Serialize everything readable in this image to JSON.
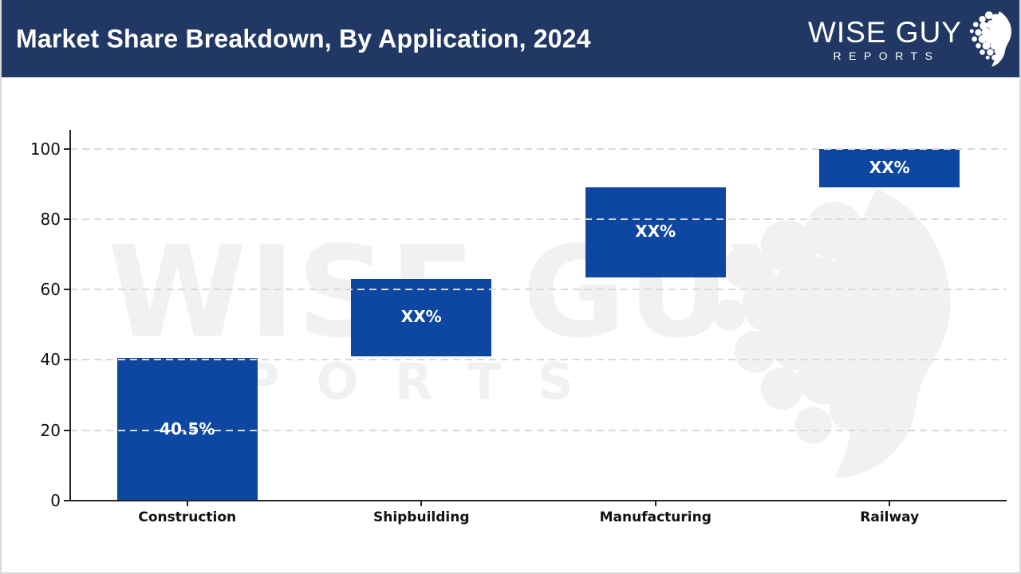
{
  "header": {
    "title": "Market Share Breakdown, By Application, 2024",
    "background_color": "#213864",
    "logo": {
      "line1": "WISE GUY",
      "line2": "REPORTS"
    }
  },
  "watermark": {
    "line1": "WISE GUY",
    "line2": "PORTS"
  },
  "chart_data": {
    "type": "bar",
    "subtype": "floating-waterfall",
    "title": "Market Share Breakdown, By Application, 2024",
    "categories": [
      "Construction",
      "Shipbuilding",
      "Manufacturing",
      "Railway"
    ],
    "segments": [
      {
        "category": "Construction",
        "start": 0,
        "end": 40.5,
        "label": "40.5%"
      },
      {
        "category": "Shipbuilding",
        "start": 41,
        "end": 63,
        "label": "XX%"
      },
      {
        "category": "Manufacturing",
        "start": 63.5,
        "end": 89,
        "label": "XX%"
      },
      {
        "category": "Railway",
        "start": 89,
        "end": 100,
        "label": "XX%"
      }
    ],
    "yticks": [
      0,
      20,
      40,
      60,
      80,
      100
    ],
    "ylim": [
      0,
      105
    ],
    "xlabel": "",
    "ylabel": "",
    "grid": "horizontal-dashed",
    "legend": "none",
    "bar_color": "#0D47A1",
    "bar_label_color": "#FFFFFF"
  }
}
